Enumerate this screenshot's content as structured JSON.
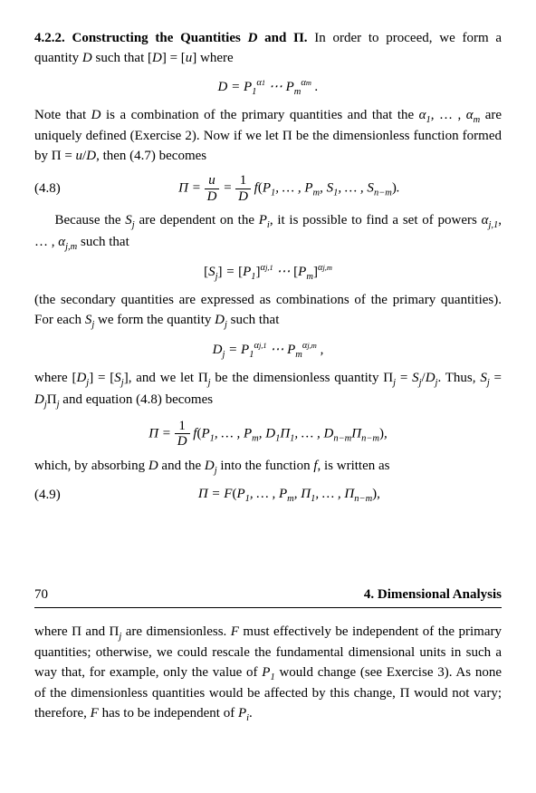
{
  "sec": {
    "num": "4.2.2.",
    "title": "Constructing the Quantities",
    "title_tail": "D and Π.",
    "lead": "In order to proceed, we form a quantity D such that [D] = [u] where"
  },
  "eq1": "D = P₁^{α₁} ⋯ P_m^{α_m}.",
  "para2": "Note that D is a combination of the primary quantities and that the α₁, … , α_m are uniquely defined (Exercise 2). Now if we let Π be the dimensionless function formed by Π = u/D, then (4.7) becomes",
  "eq48_num": "(4.8)",
  "eq48": "Π = u/D = (1/D) f(P₁, … , P_m, S₁, … , S_{n−m}).",
  "para3": "Because the S_j are dependent on the P_i, it is possible to find a set of powers α_{j,1}, … , α_{j,m} such that",
  "eq_sj": "[S_j] = [P₁]^{α_{j,1}} ⋯ [P_m]^{α_{j,m}}",
  "para4": "(the secondary quantities are expressed as combinations of the primary quantities). For each S_j we form the quantity D_j such that",
  "eq_dj": "D_j = P₁^{α_{j,1}} ⋯ P_m^{α_{j,m}},",
  "para5a": "where [D_j] = [S_j], and we let Π_j be the dimensionless quantity Π_j = S_j/D_j. Thus, S_j = D_jΠ_j and equation (4.8) becomes",
  "eq_pi2": "Π = (1/D) f(P₁, … , P_m, D₁Π₁, … , D_{n−m}Π_{n−m}),",
  "para6": "which, by absorbing D and the D_j into the function f, is written as",
  "eq49_num": "(4.9)",
  "eq49": "Π = F(P₁, … , P_m, Π₁, … , Π_{n−m}),",
  "run": {
    "page": "70",
    "chap": "4. Dimensional Analysis"
  },
  "para7": "where Π and Π_j are dimensionless. F must effectively be independent of the primary quantities; otherwise, we could rescale the fundamental dimensional units in such a way that, for example, only the value of P₁ would change (see Exercise 3). As none of the dimensionless quantities would be affected by this change, Π would not vary; therefore, F has to be independent of P_i."
}
